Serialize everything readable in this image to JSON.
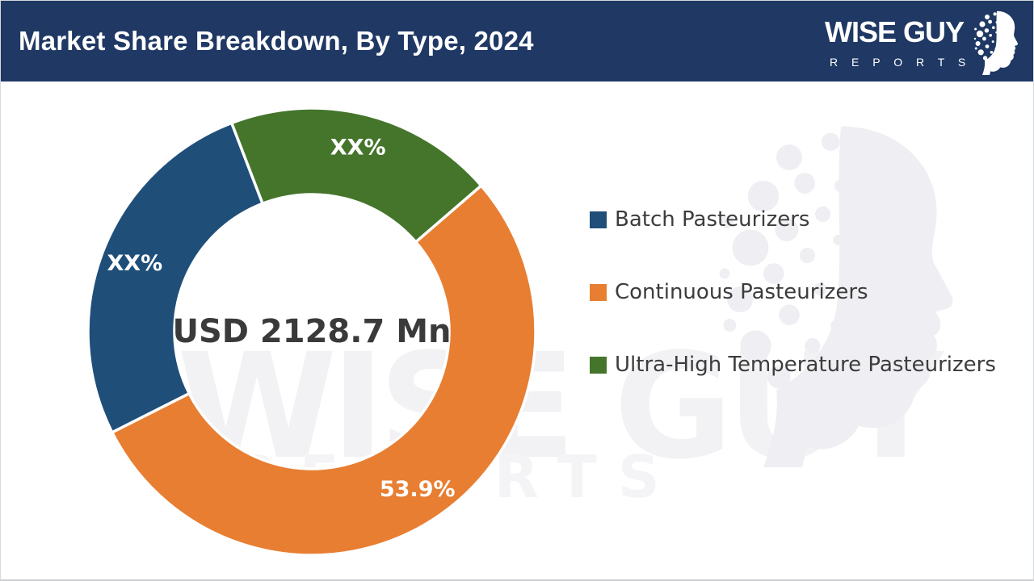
{
  "header": {
    "title": "Market Share Breakdown, By Type, 2024",
    "background_color": "#1F3864",
    "logo": {
      "brand_line1": "WISE GUY",
      "brand_line2": "R E P O R T S"
    }
  },
  "watermark": {
    "line1": "WISE GUY",
    "line2": "R E P O R T S",
    "color": "#F1F1F4"
  },
  "chart_data": {
    "type": "donut",
    "title": "Market Share Breakdown, By Type, 2024",
    "center_label": "USD 2128.7 Mn",
    "legend_position": "right",
    "segments": [
      {
        "name": "Batch Pasteurizers",
        "color": "#1F4E79",
        "displayed_label": "XX%",
        "value_pct_est": 26.6,
        "start_deg": 243.2,
        "end_deg": 339.0
      },
      {
        "name": "Continuous Pasteurizers",
        "color": "#E87E32",
        "displayed_label": "53.9%",
        "value_pct_est": 53.9,
        "start_deg": 49.2,
        "end_deg": 243.2
      },
      {
        "name": "Ultra-High Temperature Pasteurizers",
        "color": "#44752B",
        "displayed_label": "XX%",
        "value_pct_est": 19.5,
        "start_deg": 339.0,
        "end_deg": 409.2
      }
    ],
    "geometry": {
      "outer_radius": 277,
      "inner_radius": 170,
      "label_radius": 235,
      "gap_stroke": "#FFFFFF"
    }
  }
}
